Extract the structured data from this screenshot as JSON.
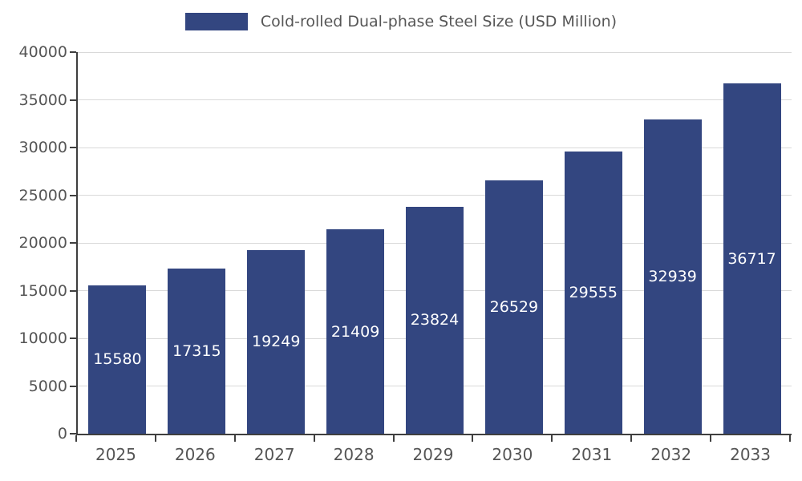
{
  "chart_data": {
    "type": "bar",
    "title": "Cold-rolled Dual-phase Steel Size (USD Million)",
    "categories": [
      "2025",
      "2026",
      "2027",
      "2028",
      "2029",
      "2030",
      "2031",
      "2032",
      "2033"
    ],
    "values": [
      15580,
      17315,
      19249,
      21409,
      23824,
      26529,
      29555,
      32939,
      36717
    ],
    "xlabel": "",
    "ylabel": "",
    "ylim": [
      0,
      40000
    ],
    "ytick_step": 5000,
    "yticks": [
      0,
      5000,
      10000,
      15000,
      20000,
      25000,
      30000,
      35000,
      40000
    ],
    "grid": true,
    "legend_position": "top-center",
    "bar_color": "#334680",
    "bar_label_color": "#ffffff",
    "axis_color": "#3f3f3f",
    "grid_color": "#d9d9d9",
    "tick_label_color": "#555555"
  }
}
